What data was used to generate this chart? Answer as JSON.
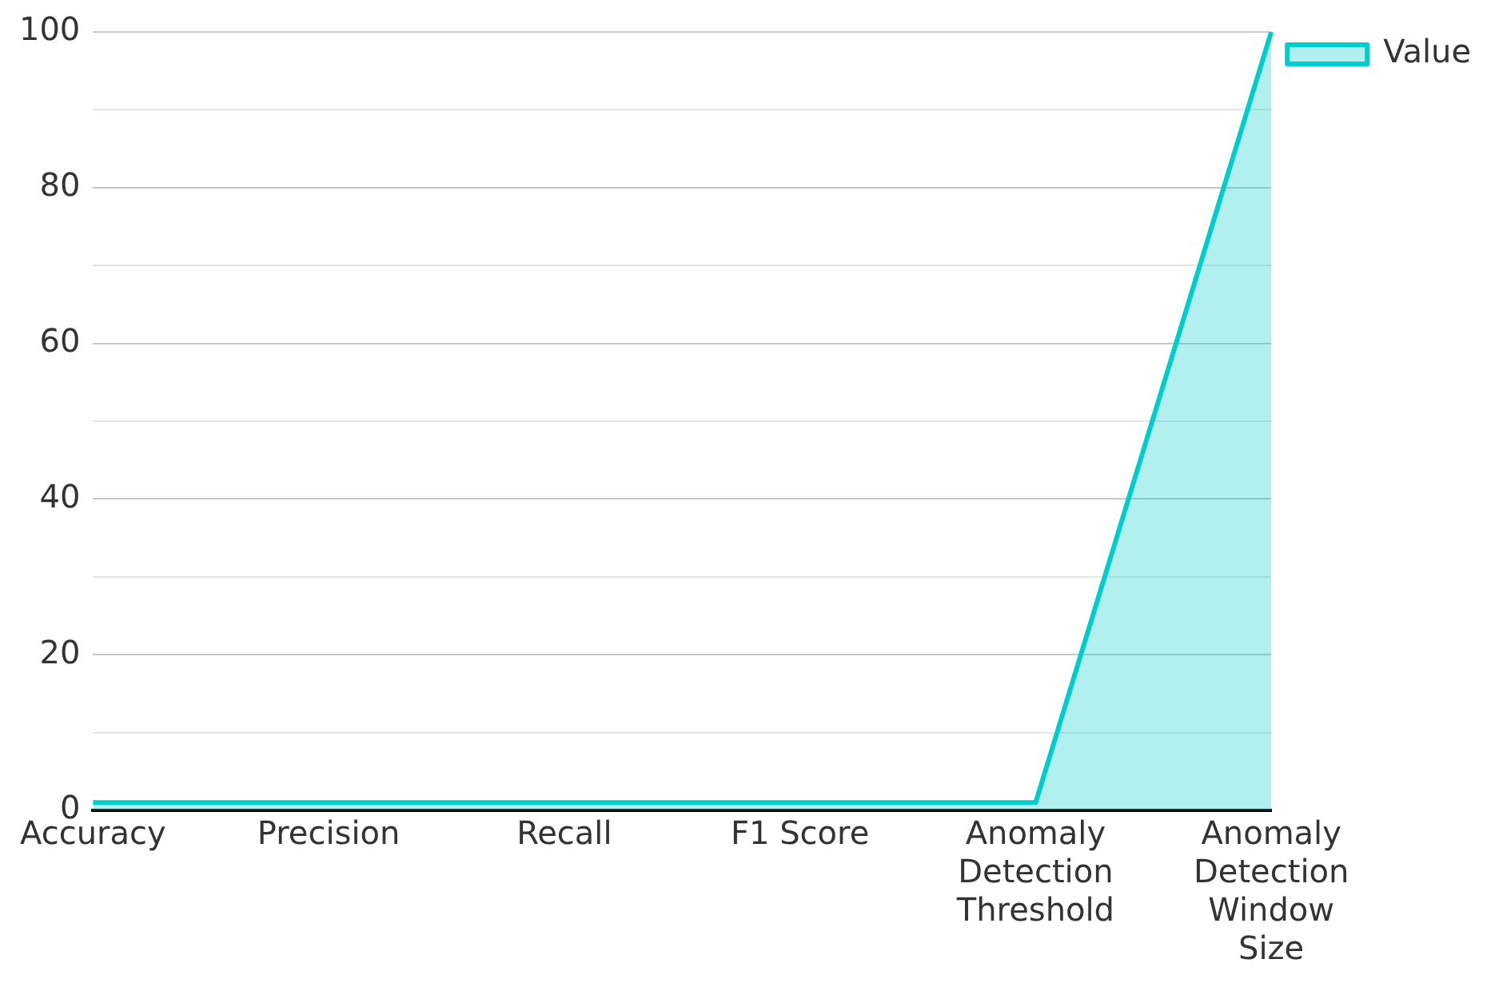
{
  "chart_data": {
    "type": "area",
    "categories": [
      "Accuracy",
      "Precision",
      "Recall",
      "F1 Score",
      "Anomaly Detection Threshold",
      "Anomaly Detection Window Size"
    ],
    "series": [
      {
        "name": "Value",
        "color": "#00cccc",
        "values": [
          1,
          1,
          1,
          1,
          1,
          100
        ]
      }
    ],
    "ylim": [
      0,
      100
    ],
    "yticks": [
      0,
      {
        "value": 10,
        "label": null
      },
      20,
      {
        "value": 30,
        "label": null
      },
      40,
      {
        "value": 50,
        "label": null
      },
      60,
      {
        "value": 70,
        "label": null
      },
      80,
      {
        "value": 90,
        "label": null
      },
      100
    ],
    "grid": "y",
    "legend": "top right",
    "marker": "none",
    "line_style": "solid"
  }
}
